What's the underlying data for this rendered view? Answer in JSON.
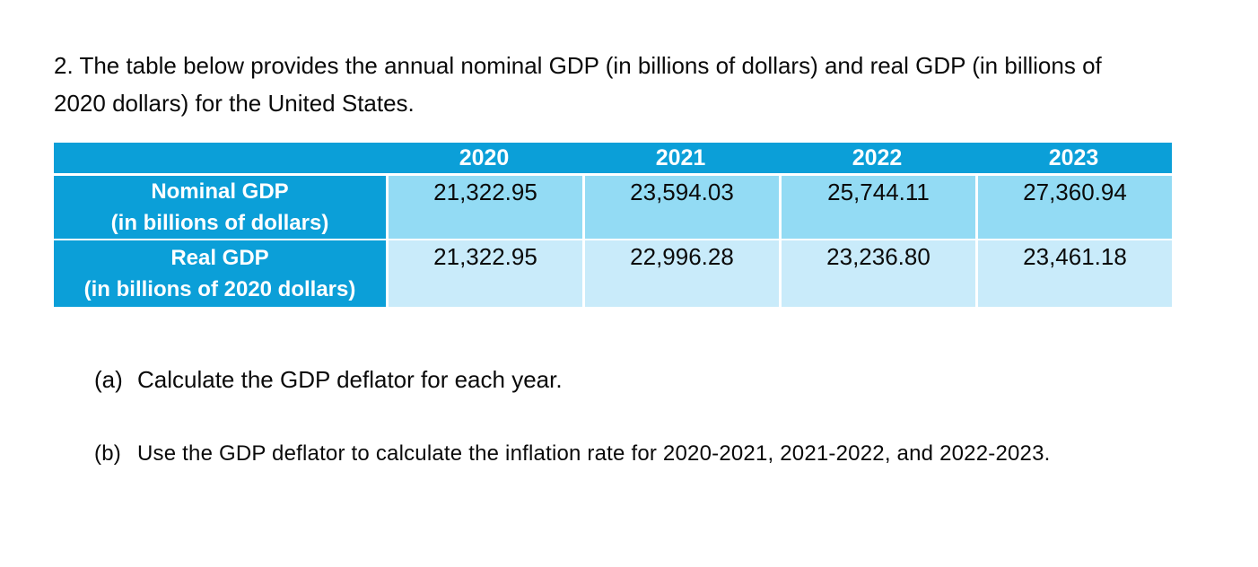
{
  "intro": {
    "line1": "2. The table below provides the annual nominal GDP (in billions of dollars) and real GDP (in billions of",
    "line2": "2020 dollars) for the United States."
  },
  "table": {
    "years": [
      "2020",
      "2021",
      "2022",
      "2023"
    ],
    "rows": [
      {
        "label_line1": "Nominal GDP",
        "label_line2": "(in billions of dollars)",
        "values": [
          "21,322.95",
          "23,594.03",
          "25,744.11",
          "27,360.94"
        ]
      },
      {
        "label_line1": "Real GDP",
        "label_line2": "(in billions of 2020 dollars)",
        "values": [
          "21,322.95",
          "22,996.28",
          "23,236.80",
          "23,461.18"
        ]
      }
    ],
    "colors": {
      "header_blue": "#0B9FD8",
      "nominal_cell_blue": "#93DBF4",
      "real_cell_blue": "#C9EBFA"
    }
  },
  "questions": [
    {
      "marker": "(a)",
      "text": "Calculate the GDP deflator for each year."
    },
    {
      "marker": "(b)",
      "text": "Use the GDP deflator to calculate the inflation rate for 2020-2021, 2021-2022, and 2022-2023."
    }
  ]
}
